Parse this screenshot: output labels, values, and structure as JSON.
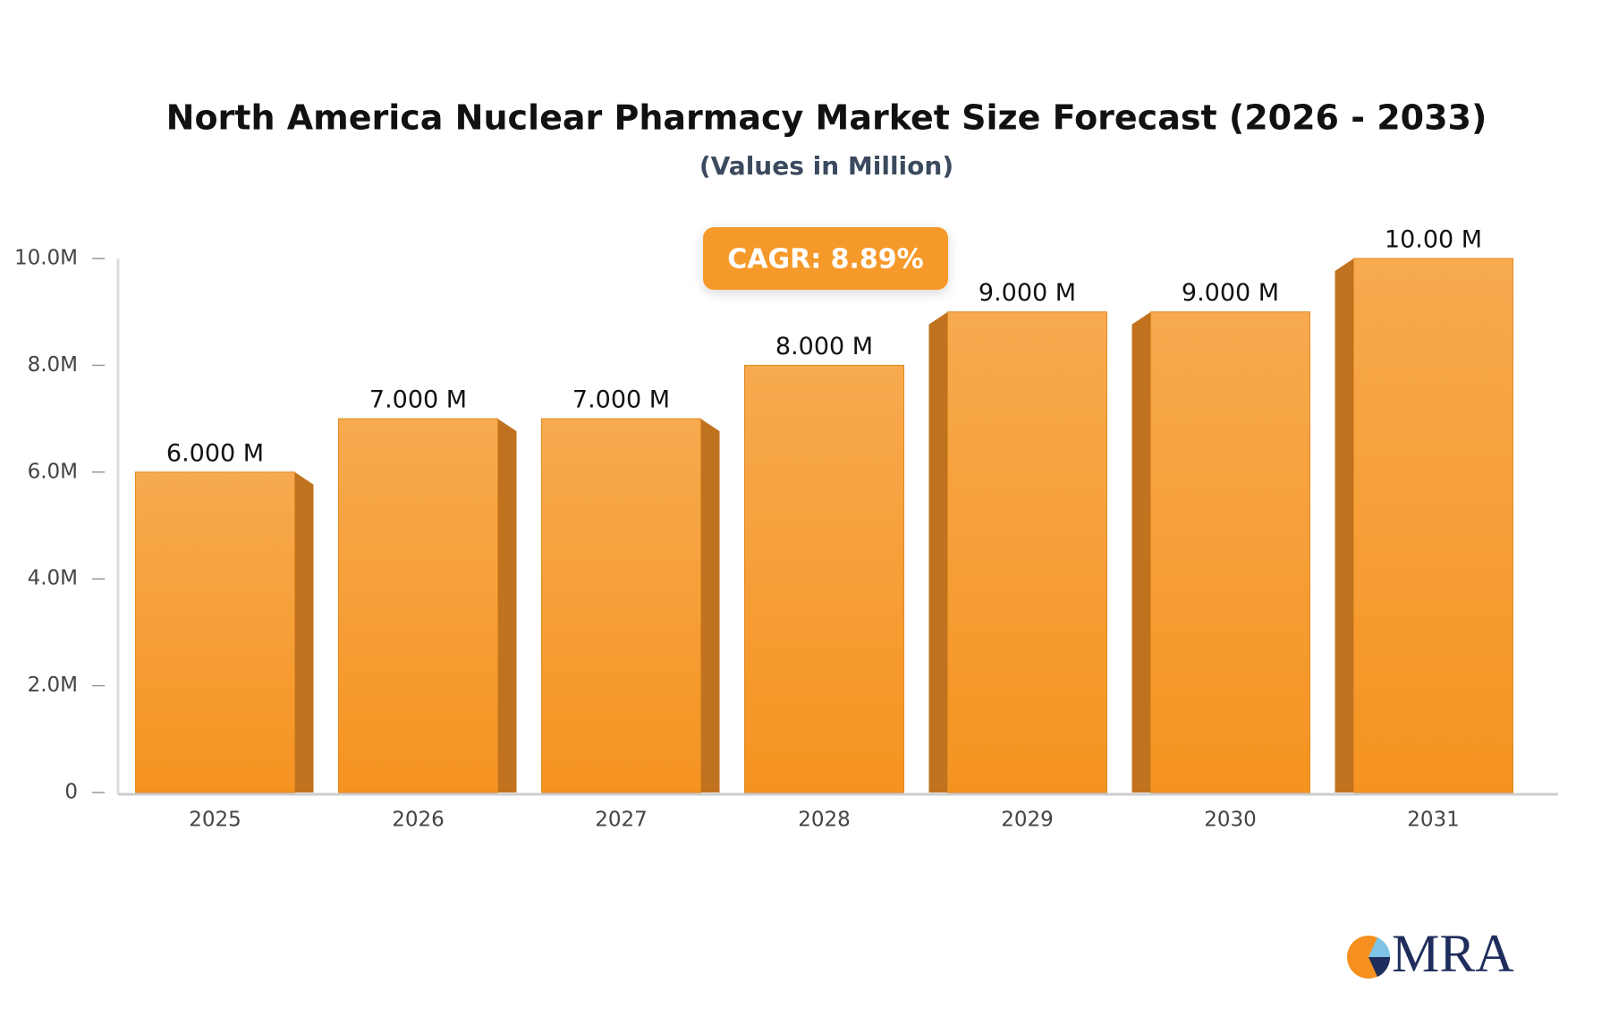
{
  "chart_data": {
    "type": "bar",
    "title": "North America Nuclear Pharmacy Market Size Forecast (2026 - 2033)",
    "subtitle": "(Values in Million)",
    "annotation": "CAGR: 8.89%",
    "categories": [
      "2025",
      "2026",
      "2027",
      "2028",
      "2029",
      "2030",
      "2031"
    ],
    "values": [
      6,
      7,
      7,
      8,
      9,
      9,
      10
    ],
    "value_labels": [
      "6.000 M",
      "7.000 M",
      "7.000 M",
      "8.000 M",
      "9.000 M",
      "9.000 M",
      "10.00 M"
    ],
    "color": "#f59a2c",
    "ylim": [
      0,
      10
    ],
    "yticks": [
      0,
      {
        "value": 2,
        "label": "2.0M"
      },
      {
        "value": 4,
        "label": "4.0M"
      },
      {
        "value": 6,
        "label": "6.0M"
      },
      {
        "value": 8,
        "label": "8.0M"
      },
      {
        "value": 10,
        "label": "10.0M"
      }
    ],
    "grid": false
  },
  "logo": {
    "text": "MRA"
  }
}
